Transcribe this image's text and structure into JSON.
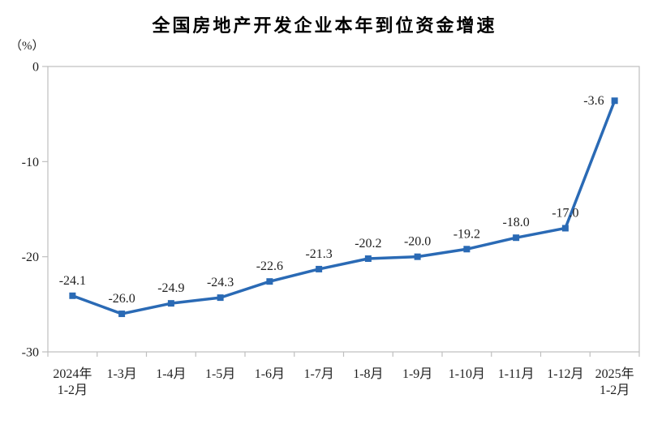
{
  "chart_data": {
    "type": "line",
    "title": "全国房地产开发企业本年到位资金增速",
    "ylabel": "（%）",
    "categories": [
      [
        "2024年",
        "1-2月"
      ],
      [
        "1-3月"
      ],
      [
        "1-4月"
      ],
      [
        "1-5月"
      ],
      [
        "1-6月"
      ],
      [
        "1-7月"
      ],
      [
        "1-8月"
      ],
      [
        "1-9月"
      ],
      [
        "1-10月"
      ],
      [
        "1-11月"
      ],
      [
        "1-12月"
      ],
      [
        "2025年",
        "1-2月"
      ]
    ],
    "values": [
      -24.1,
      -26.0,
      -24.9,
      -24.3,
      -22.6,
      -21.3,
      -20.2,
      -20.0,
      -19.2,
      -18.0,
      -17.0,
      -3.6
    ],
    "data_labels": [
      "-24.1",
      "-26.0",
      "-24.9",
      "-24.3",
      "-22.6",
      "-21.3",
      "-20.2",
      "-20.0",
      "-19.2",
      "-18.0",
      "-17.0",
      "-3.6"
    ],
    "ylim": [
      -30,
      0
    ],
    "ytick_values": [
      0,
      -10,
      -20,
      -30
    ],
    "ytick_labels": [
      "0",
      "-10",
      "-20",
      "-30"
    ],
    "grid": false,
    "legend": "none",
    "marker": "square",
    "data_label_position": "above (last point: left)",
    "line_color": "#2a6ab5",
    "axis_color": "#bfbfbf",
    "text_color": "#1f1f1f"
  }
}
